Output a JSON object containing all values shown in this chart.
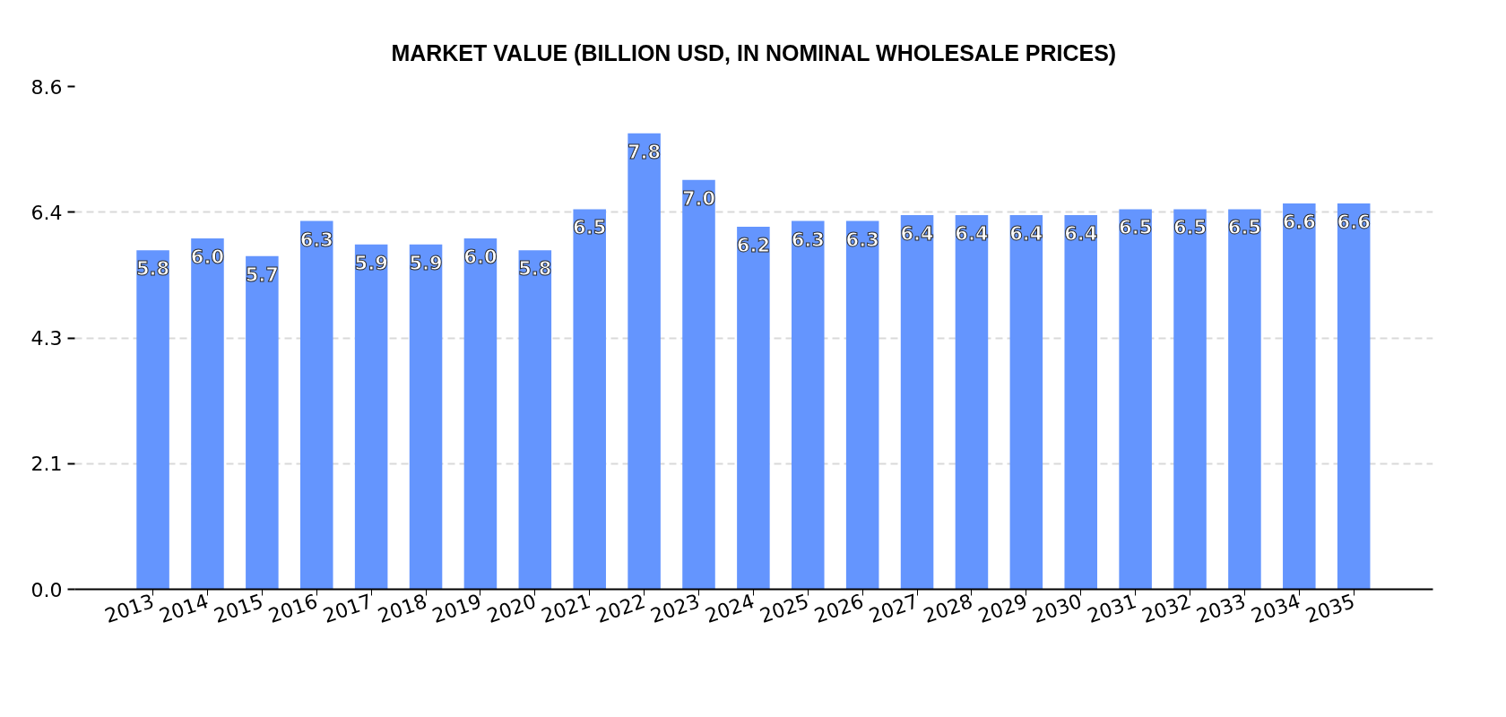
{
  "chart_data": {
    "type": "bar",
    "title": "MARKET VALUE (BILLION USD, IN NOMINAL WHOLESALE PRICES)",
    "categories": [
      "2013",
      "2014",
      "2015",
      "2016",
      "2017",
      "2018",
      "2019",
      "2020",
      "2021",
      "2022",
      "2023",
      "2024",
      "2025",
      "2026",
      "2027",
      "2028",
      "2029",
      "2030",
      "2031",
      "2032",
      "2033",
      "2034",
      "2035"
    ],
    "values": [
      5.8,
      6.0,
      5.7,
      6.3,
      5.9,
      5.9,
      6.0,
      5.8,
      6.5,
      7.8,
      7.0,
      6.2,
      6.3,
      6.3,
      6.4,
      6.4,
      6.4,
      6.4,
      6.5,
      6.5,
      6.5,
      6.6,
      6.6
    ],
    "value_labels": [
      "5.8",
      "6.0",
      "5.7",
      "6.3",
      "5.9",
      "5.9",
      "6.0",
      "5.8",
      "6.5",
      "7.8",
      "7.0",
      "6.2",
      "6.3",
      "6.3",
      "6.4",
      "6.4",
      "6.4",
      "6.4",
      "6.5",
      "6.5",
      "6.5",
      "6.6",
      "6.6"
    ],
    "color": "#6495fe",
    "ylim": [
      0,
      8.6
    ],
    "yticks": [
      {
        "value": 0,
        "label": "0.0"
      },
      {
        "value": 2.15,
        "label": "2.1"
      },
      4.3,
      {
        "value": 6.45,
        "label": "6.4"
      },
      8.6
    ],
    "grid": "y"
  }
}
